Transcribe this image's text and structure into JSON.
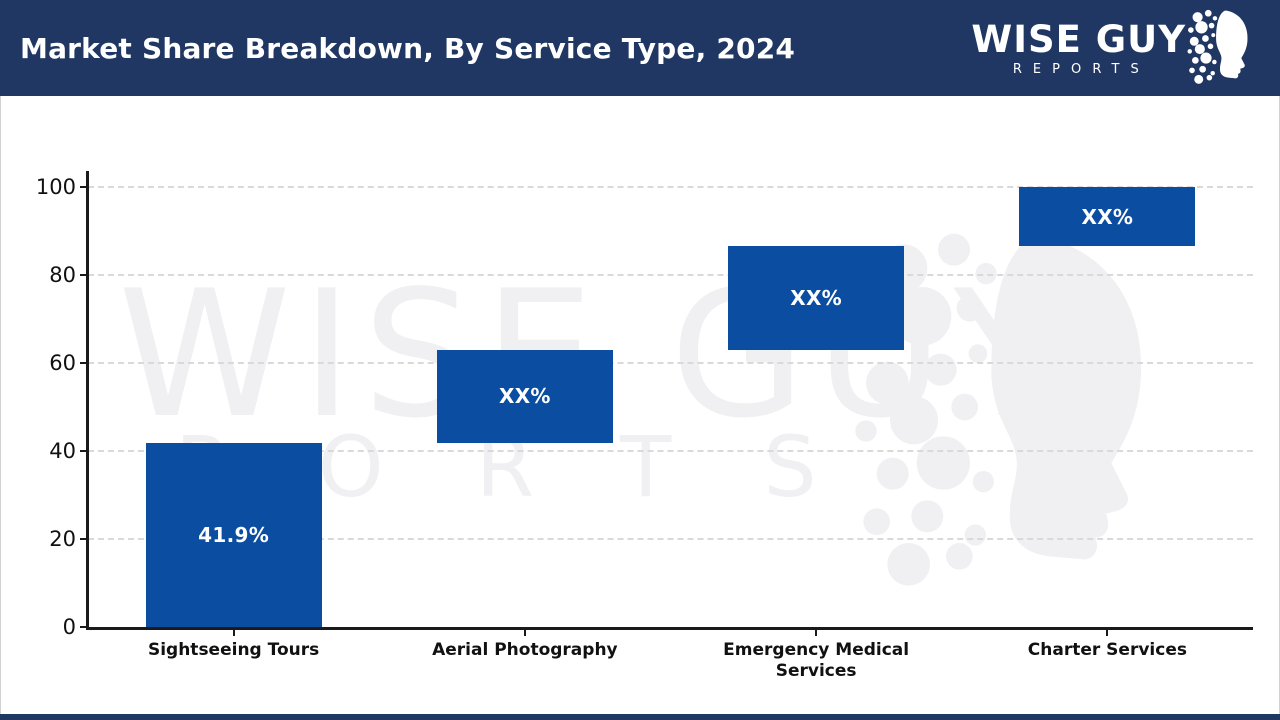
{
  "header": {
    "title": "Market Share Breakdown, By Service Type, 2024",
    "bg_color": "#203763",
    "logo": {
      "line1": "WISE GUY",
      "line2": "REPORTS"
    }
  },
  "watermark": {
    "line1": "WISE GUY",
    "line2": "PORTS"
  },
  "chart_data": {
    "type": "bar",
    "variant": "waterfall",
    "title": "Market Share Breakdown, By Service Type, 2024",
    "categories": [
      "Sightseeing Tours",
      "Aerial Photography",
      "Emergency Medical Services",
      "Charter Services"
    ],
    "segments": [
      {
        "category": "Sightseeing Tours",
        "start": 0,
        "end": 41.9,
        "label": "41.9%"
      },
      {
        "category": "Aerial Photography",
        "start": 41.9,
        "end": 62.9,
        "label": "XX%"
      },
      {
        "category": "Emergency Medical Services",
        "start": 62.9,
        "end": 86.5,
        "label": "XX%"
      },
      {
        "category": "Charter Services",
        "start": 86.5,
        "end": 100,
        "label": "XX%"
      }
    ],
    "xlabel": "",
    "ylabel": "",
    "ylim": [
      0,
      100
    ],
    "yticks": [
      0,
      20,
      40,
      60,
      80,
      100
    ],
    "grid": "horizontal-dashed",
    "legend": "none",
    "bar_color": "#0b4da0",
    "value_label_color": "#ffffff",
    "axis_color": "#1a1a1a",
    "gridline_color": "#d9d9d9"
  },
  "colors": {
    "header_navy": "#203763",
    "bar_blue": "#0b4da0",
    "watermark_gray": "#f0f0f3",
    "background": "#ffffff"
  }
}
